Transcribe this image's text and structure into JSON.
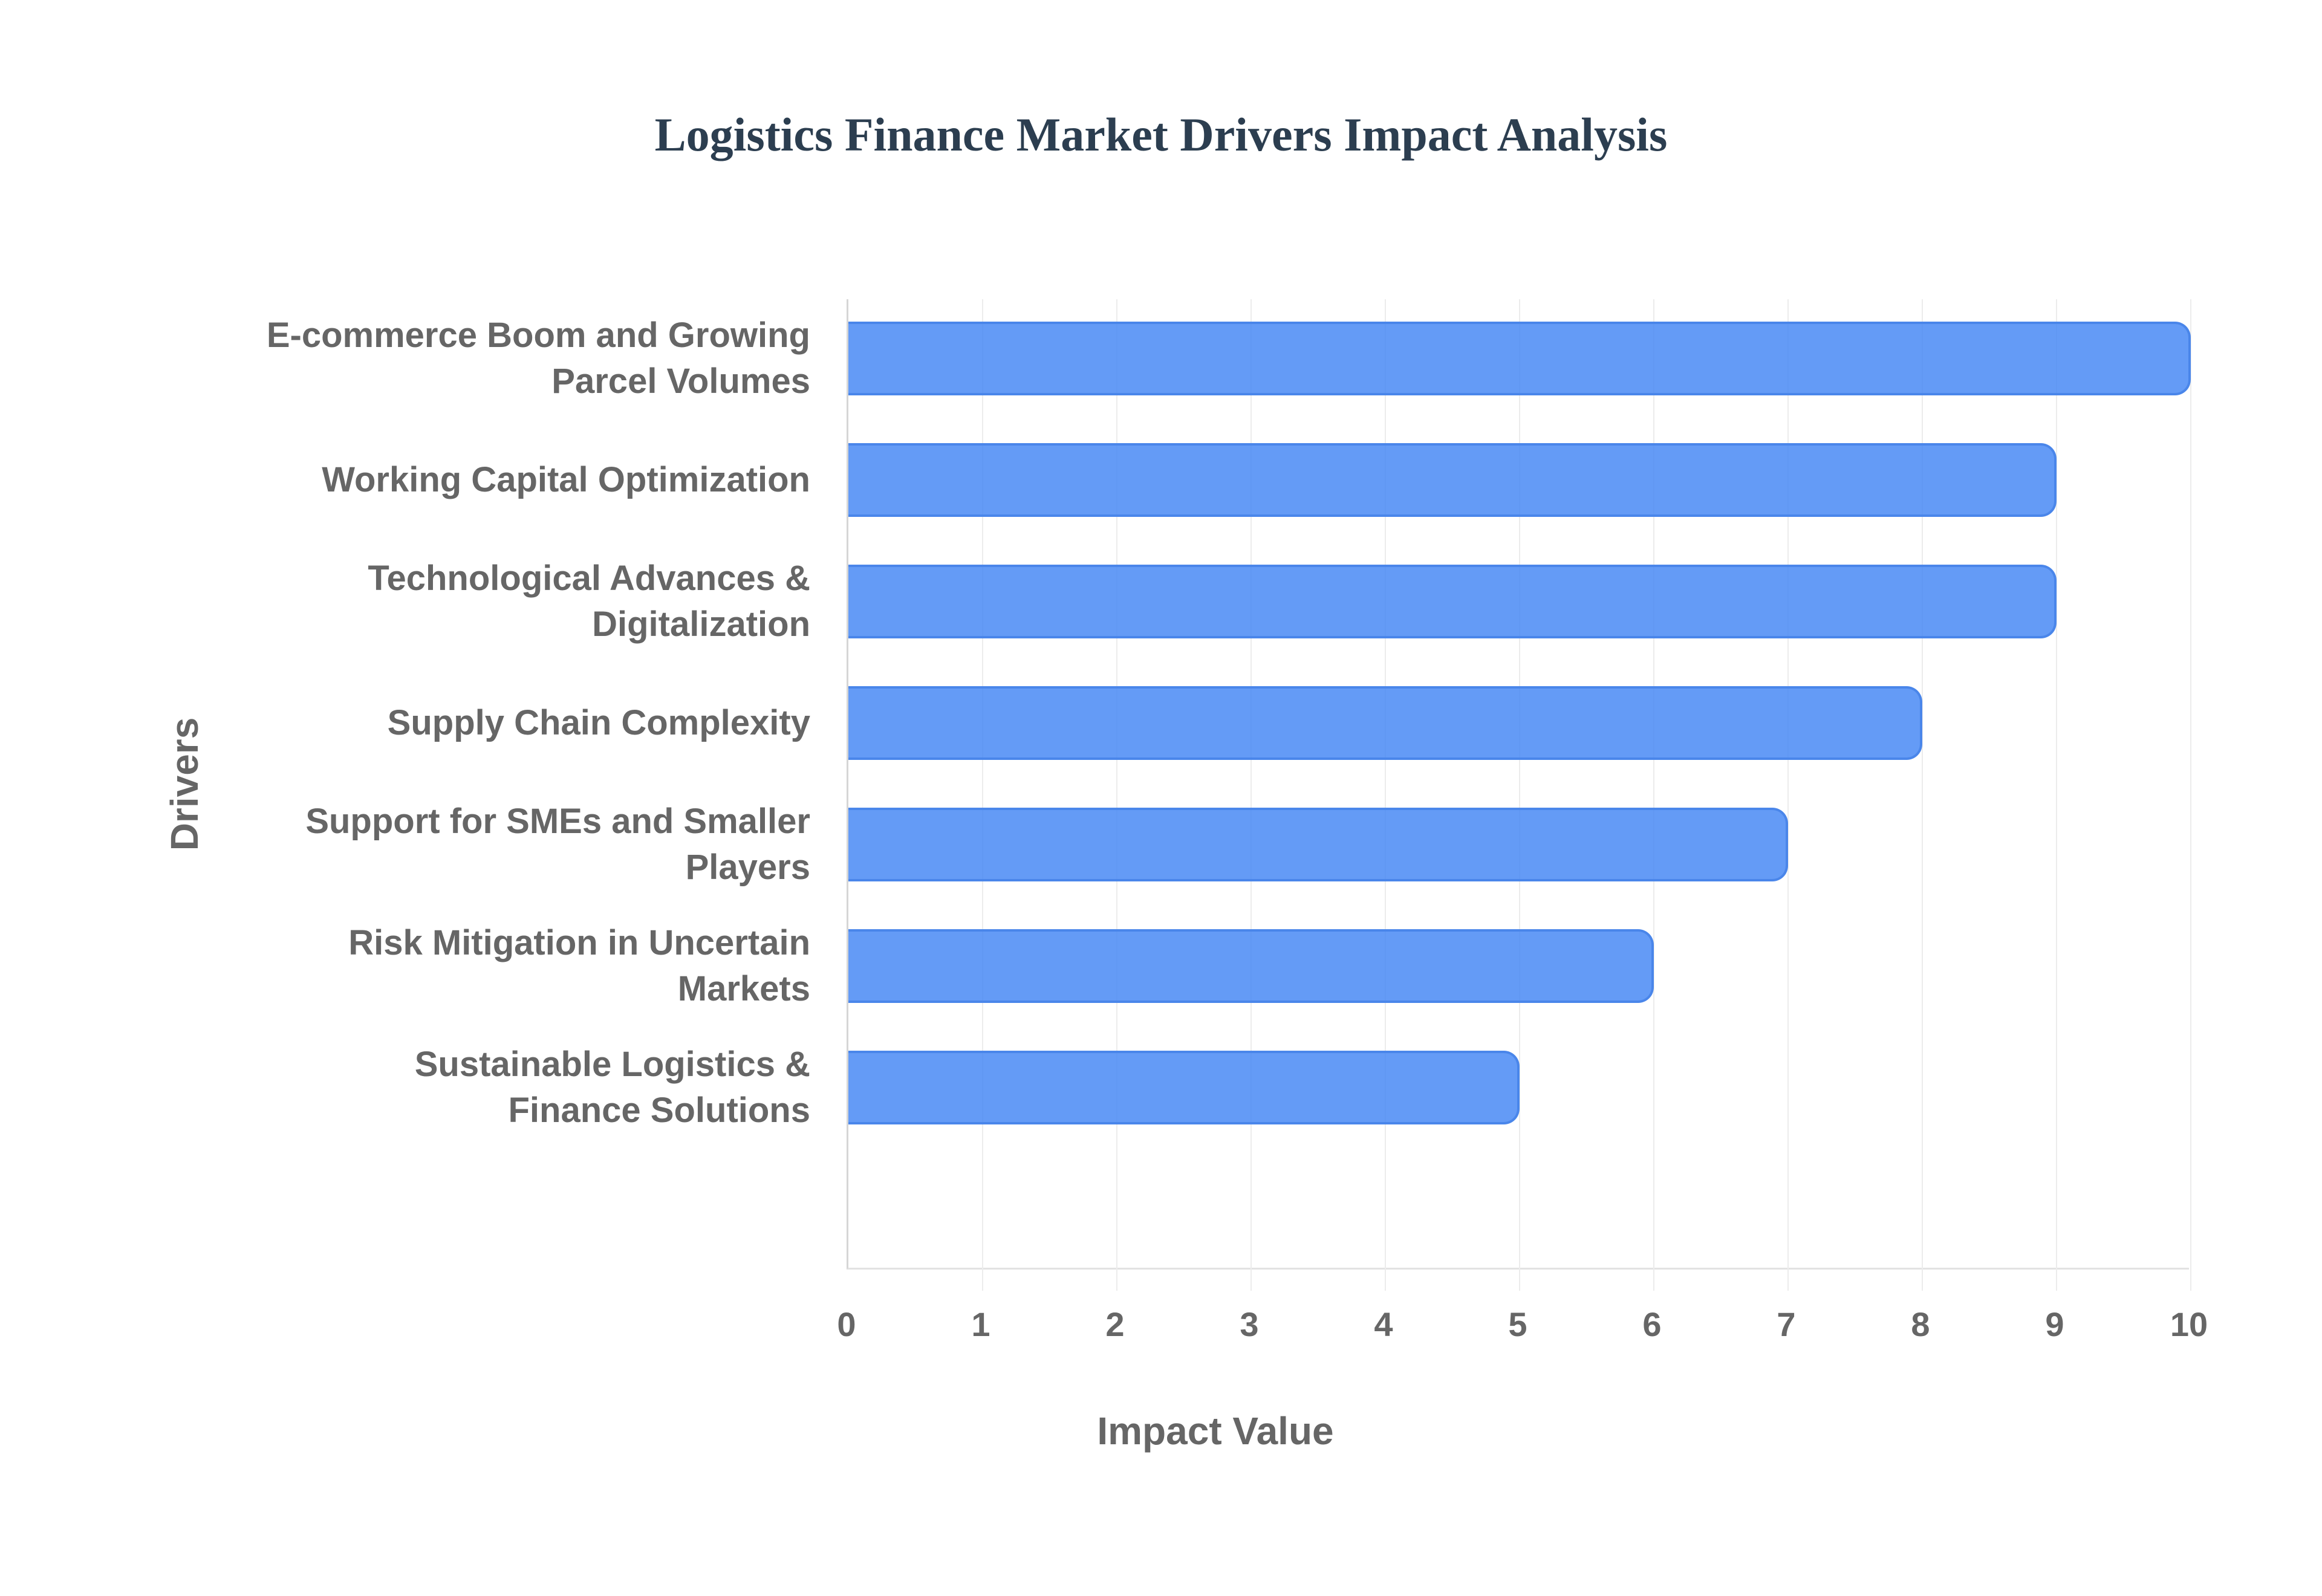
{
  "chart_data": {
    "type": "bar",
    "orientation": "horizontal",
    "title": "Logistics Finance Market Drivers Impact Analysis",
    "xlabel": "Impact Value",
    "ylabel": "Drivers",
    "xlim": [
      0,
      10
    ],
    "x_ticks": [
      "0",
      "1",
      "2",
      "3",
      "4",
      "5",
      "6",
      "7",
      "8",
      "9",
      "10"
    ],
    "grid": true,
    "legend": null,
    "bar_color": "#4285f4",
    "categories": [
      "E-commerce Boom and Growing Parcel Volumes",
      "Working Capital Optimization",
      "Technological Advances & Digitalization",
      "Supply Chain Complexity",
      "Support for SMEs and Smaller Players",
      "Risk Mitigation in Uncertain Markets",
      "Sustainable Logistics & Finance Solutions"
    ],
    "category_lines": [
      [
        "E-commerce Boom and Growing",
        "Parcel Volumes"
      ],
      [
        "Working Capital Optimization"
      ],
      [
        "Technological Advances &",
        "Digitalization"
      ],
      [
        "Supply Chain Complexity"
      ],
      [
        "Support for SMEs and Smaller",
        "Players"
      ],
      [
        "Risk Mitigation in Uncertain",
        "Markets"
      ],
      [
        "Sustainable Logistics &",
        "Finance Solutions"
      ]
    ],
    "values": [
      10,
      9,
      9,
      8,
      7,
      6,
      5
    ]
  }
}
